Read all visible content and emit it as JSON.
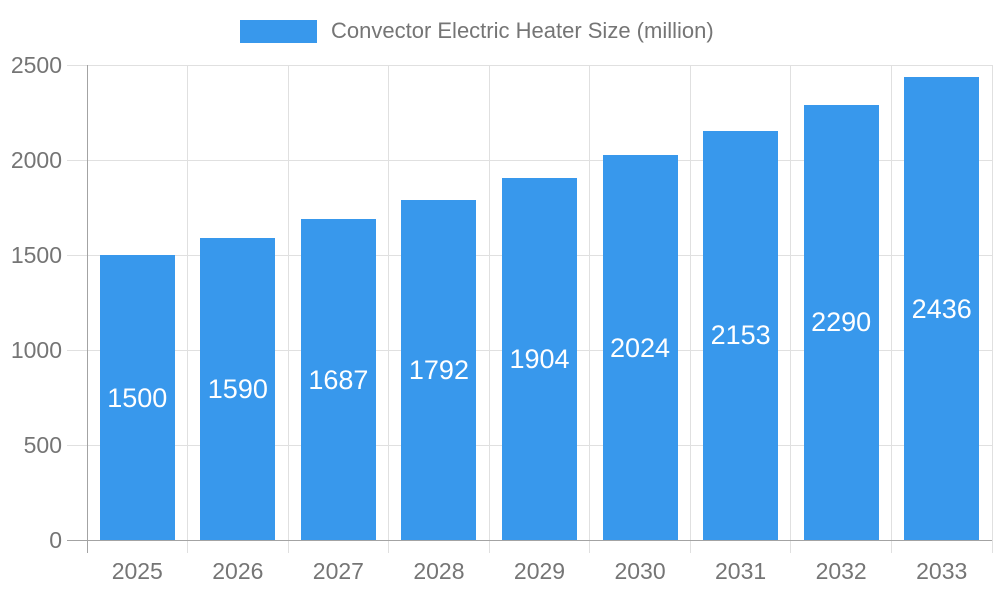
{
  "legend": {
    "label": "Convector Electric Heater Size (million)"
  },
  "chart_data": {
    "type": "bar",
    "title": "Convector Electric Heater Size (million)",
    "categories": [
      "2025",
      "2026",
      "2027",
      "2028",
      "2029",
      "2030",
      "2031",
      "2032",
      "2033"
    ],
    "values": [
      1500,
      1590,
      1687,
      1792,
      1904,
      2024,
      2153,
      2290,
      2436
    ],
    "xlabel": "",
    "ylabel": "",
    "ylim": [
      0,
      2500
    ],
    "yticks": [
      0,
      500,
      1000,
      1500,
      2000,
      2500
    ],
    "grid": true,
    "legend_position": "top",
    "bar_color": "#3898EC",
    "bar_label_color": "#FFFFFF",
    "axis_color": "#A3A3A3",
    "gridline_color": "#E0E0E0",
    "tick_label_color": "#757575",
    "background_color": "#FFFFFF"
  }
}
